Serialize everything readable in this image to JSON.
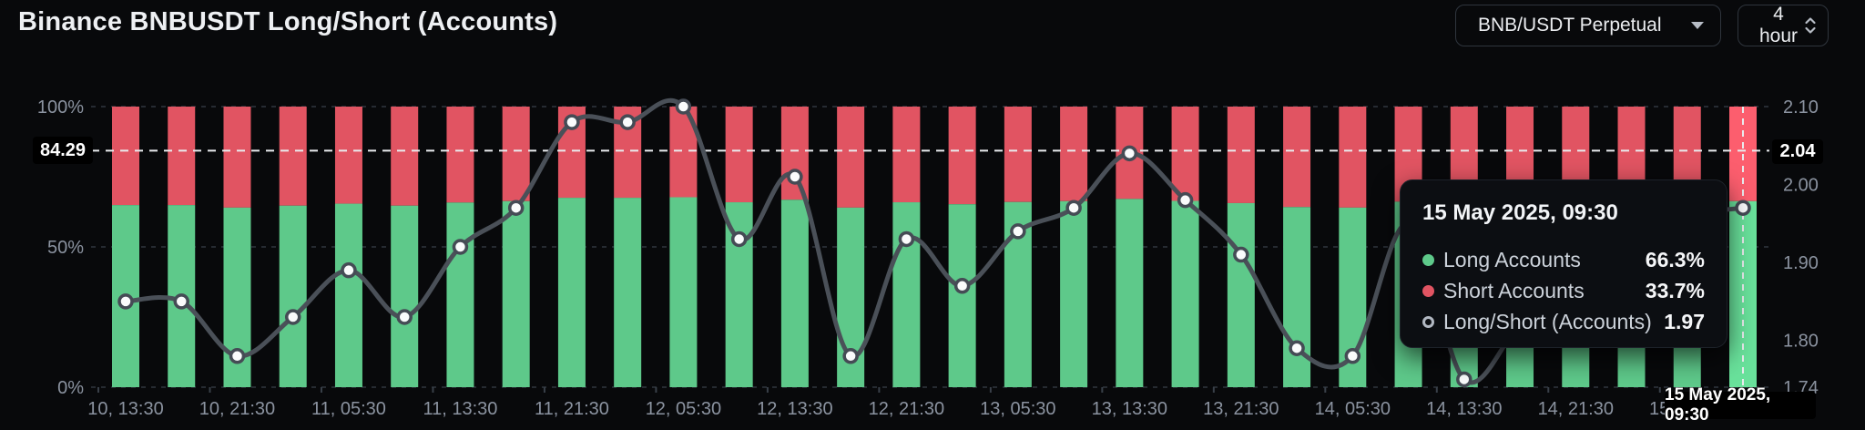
{
  "header": {
    "title": "Binance BNBUSDT Long/Short (Accounts)"
  },
  "controls": {
    "pair_select": {
      "value": "BNB/USDT Perpetual"
    },
    "interval_select": {
      "value": "4 hour"
    }
  },
  "colors": {
    "long": "#5ec98a",
    "short": "#e15462",
    "ratio_line": "#4a5058",
    "marker_fill": "#fafbfc",
    "marker_ring": "#454b55",
    "crosshair": "#e9ebee",
    "grid": "#262b32",
    "axis_text": "#8b93a0",
    "tick_mark": "#394049",
    "tag_bg": "#000000"
  },
  "chart_data": {
    "type": "bar+line",
    "title": "Binance BNBUSDT Long/Short (Accounts)",
    "x_ticks": [
      "10, 13:30",
      "10, 21:30",
      "11, 05:30",
      "11, 13:30",
      "11, 21:30",
      "12, 05:30",
      "12, 13:30",
      "12, 21:30",
      "13, 05:30",
      "13, 13:30",
      "13, 21:30",
      "14, 05:30",
      "14, 13:30",
      "14, 21:30",
      "15, 05:30"
    ],
    "series": [
      {
        "name": "Long Accounts",
        "type": "bar",
        "stack": true,
        "axis": "left",
        "unit": "%",
        "color": "#5ec98a",
        "values": [
          64.9,
          64.9,
          64.0,
          64.7,
          65.4,
          64.7,
          65.8,
          66.3,
          67.5,
          67.5,
          67.7,
          65.9,
          66.8,
          64.0,
          65.9,
          65.2,
          66.0,
          66.3,
          67.1,
          66.4,
          65.6,
          64.2,
          64.0,
          66.1,
          63.6,
          64.5,
          65.3,
          65.9,
          66.2,
          66.3
        ]
      },
      {
        "name": "Short Accounts",
        "type": "bar",
        "stack": true,
        "axis": "left",
        "unit": "%",
        "color": "#e15462",
        "values": [
          35.1,
          35.1,
          36.0,
          35.3,
          34.6,
          35.3,
          34.2,
          33.7,
          32.5,
          32.5,
          32.3,
          34.1,
          33.2,
          36.0,
          34.1,
          34.8,
          34.0,
          33.7,
          32.9,
          33.6,
          34.4,
          35.8,
          36.0,
          33.9,
          36.4,
          35.5,
          34.7,
          34.1,
          33.8,
          33.7
        ]
      },
      {
        "name": "Long/Short (Accounts)",
        "type": "line",
        "axis": "right",
        "color": "#4a5058",
        "values": [
          1.85,
          1.85,
          1.78,
          1.83,
          1.89,
          1.83,
          1.92,
          1.97,
          2.08,
          2.08,
          2.1,
          1.93,
          2.01,
          1.78,
          1.93,
          1.87,
          1.94,
          1.97,
          2.04,
          1.98,
          1.91,
          1.79,
          1.78,
          1.95,
          1.75,
          1.82,
          1.88,
          1.93,
          1.96,
          1.97
        ]
      }
    ],
    "left_axis": {
      "range": [
        0,
        100
      ],
      "ticks": [
        {
          "label": "100%",
          "value": 100
        },
        {
          "label": "50%",
          "value": 50
        },
        {
          "label": "0%",
          "value": 0
        }
      ]
    },
    "right_axis": {
      "range": [
        1.74,
        2.1
      ],
      "ticks": [
        {
          "label": "2.10",
          "value": 2.1
        },
        {
          "label": "2.00",
          "value": 2.0
        },
        {
          "label": "1.90",
          "value": 1.9
        },
        {
          "label": "1.80",
          "value": 1.8
        },
        {
          "label": "1.74",
          "value": 1.74
        }
      ]
    },
    "legend_position": "none",
    "grid": "dashed-horizontal",
    "crosshair": {
      "hover_index": 29,
      "y_percent": 84.29,
      "left_label": "84.29",
      "right_label": "2.04",
      "x_label": "15 May 2025, 09:30"
    }
  },
  "tooltip": {
    "title": "15 May 2025, 09:30",
    "rows": [
      {
        "label": "Long Accounts",
        "value": "66.3%",
        "dot": "fill",
        "color": "#5ec98a"
      },
      {
        "label": "Short Accounts",
        "value": "33.7%",
        "dot": "fill",
        "color": "#e15462"
      },
      {
        "label": "Long/Short (Accounts)",
        "value": "1.97",
        "dot": "ring",
        "color": "#b2b8c2"
      }
    ]
  }
}
